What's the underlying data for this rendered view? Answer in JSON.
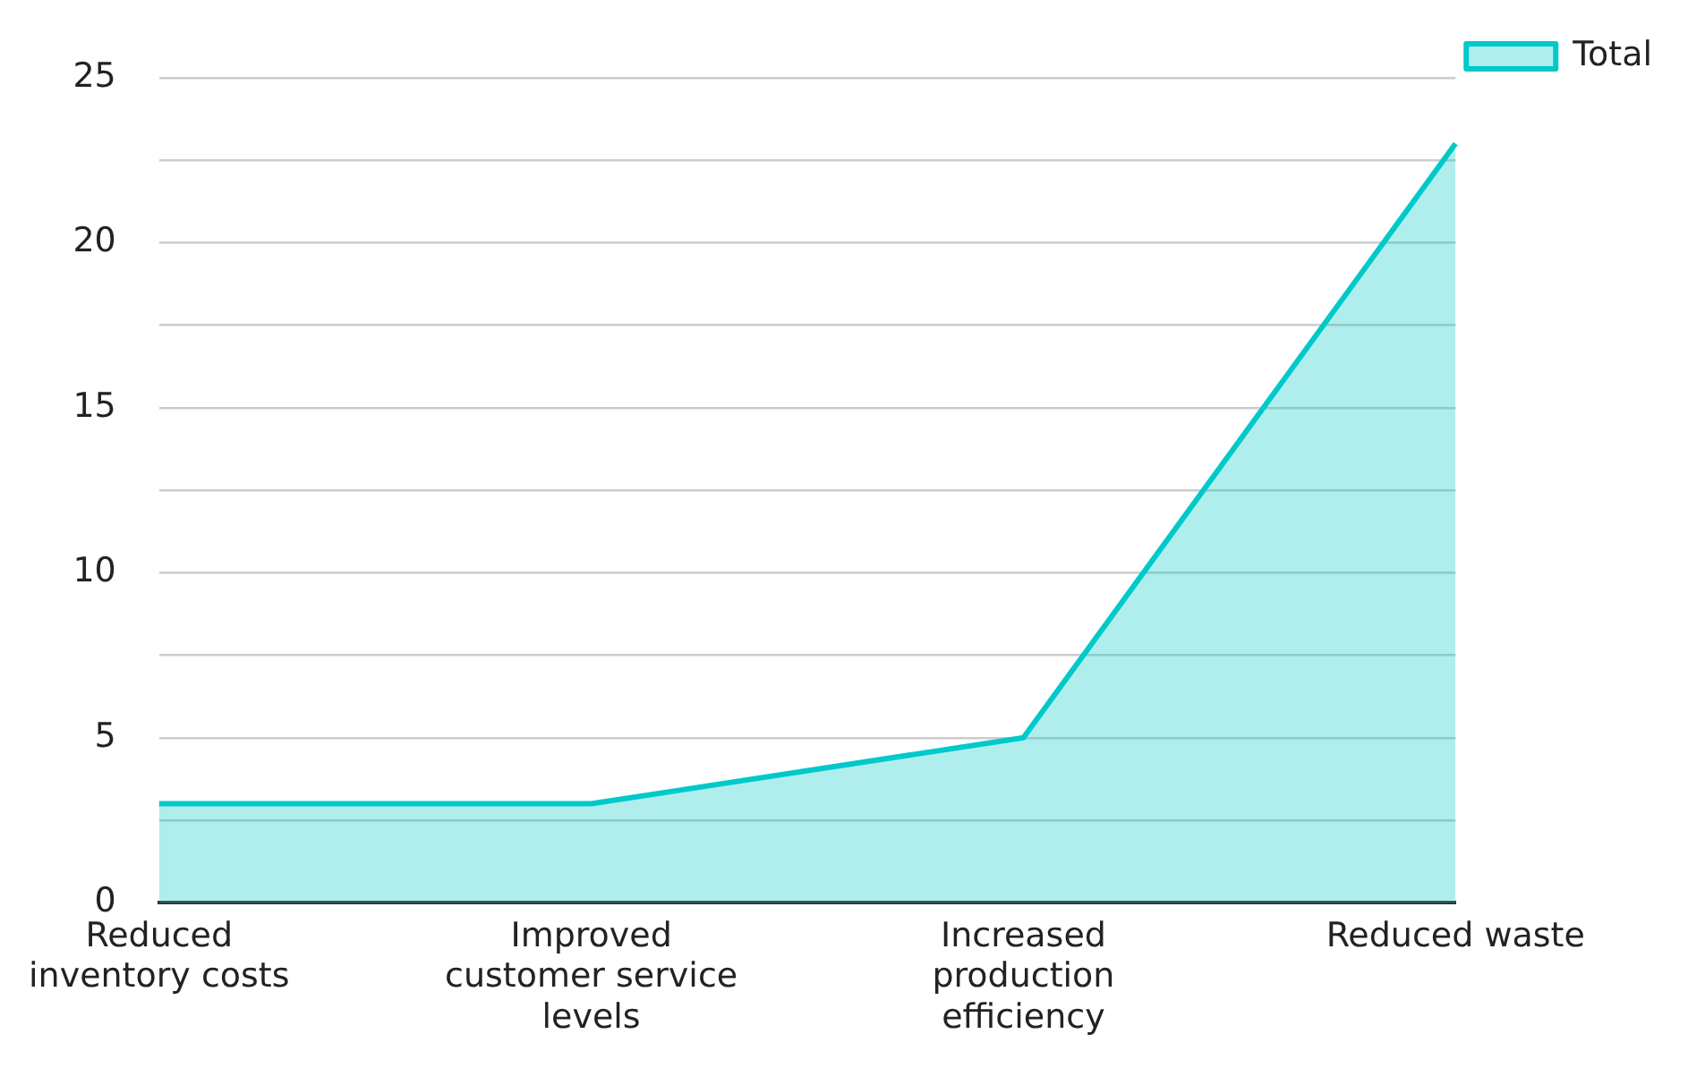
{
  "chart_data": {
    "type": "area",
    "categories": [
      "Reduced inventory costs",
      "Improved customer service levels",
      "Increased production efficiency",
      "Reduced waste"
    ],
    "series": [
      {
        "name": "Total",
        "color": "#00c9c9",
        "values": [
          3,
          3,
          5,
          23
        ]
      }
    ],
    "ylim": [
      0,
      25
    ],
    "yticks": [
      0,
      {
        "value": 2.5,
        "label": null
      },
      5,
      {
        "value": 7.5,
        "label": null
      },
      10,
      {
        "value": 12.5,
        "label": null
      },
      15,
      {
        "value": 17.5,
        "label": null
      },
      20,
      {
        "value": 22.5,
        "label": null
      },
      25
    ],
    "grid": "y",
    "legend": "top right",
    "marker": "none",
    "line_style": "solid"
  }
}
